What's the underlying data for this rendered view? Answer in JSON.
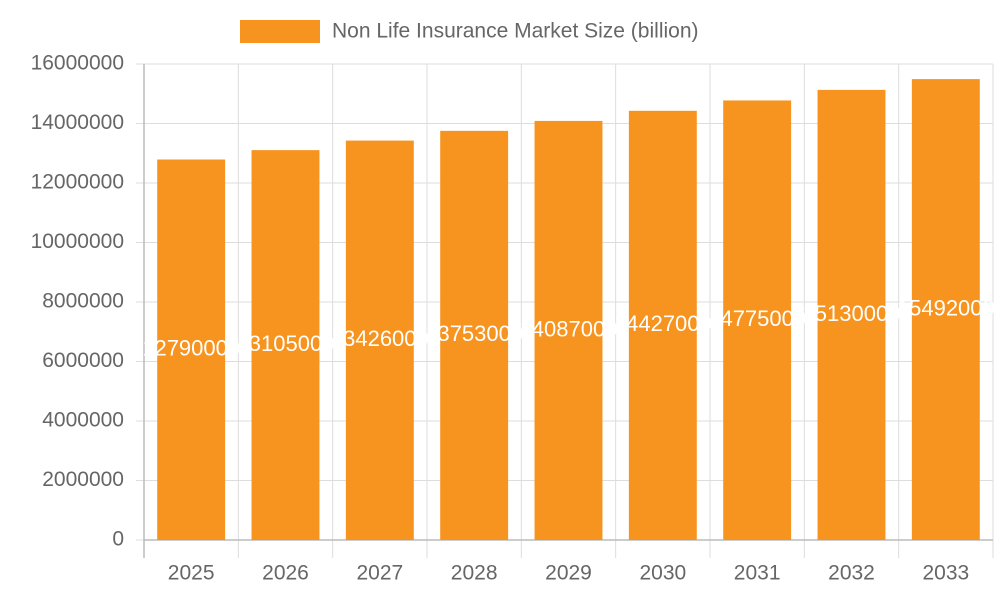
{
  "chart_data": {
    "type": "bar",
    "legend": "Non Life Insurance Market Size (billion)",
    "color": "#f7941f",
    "categories": [
      "2025",
      "2026",
      "2027",
      "2028",
      "2029",
      "2030",
      "2031",
      "2032",
      "2033"
    ],
    "values": [
      12790000,
      13105000,
      13426000,
      13753000,
      14087000,
      14427000,
      14775000,
      15130000,
      15492000
    ],
    "ylim": [
      0,
      16000000
    ],
    "yticks": [
      0,
      2000000,
      4000000,
      6000000,
      8000000,
      10000000,
      12000000,
      14000000,
      16000000
    ],
    "grid": true
  }
}
